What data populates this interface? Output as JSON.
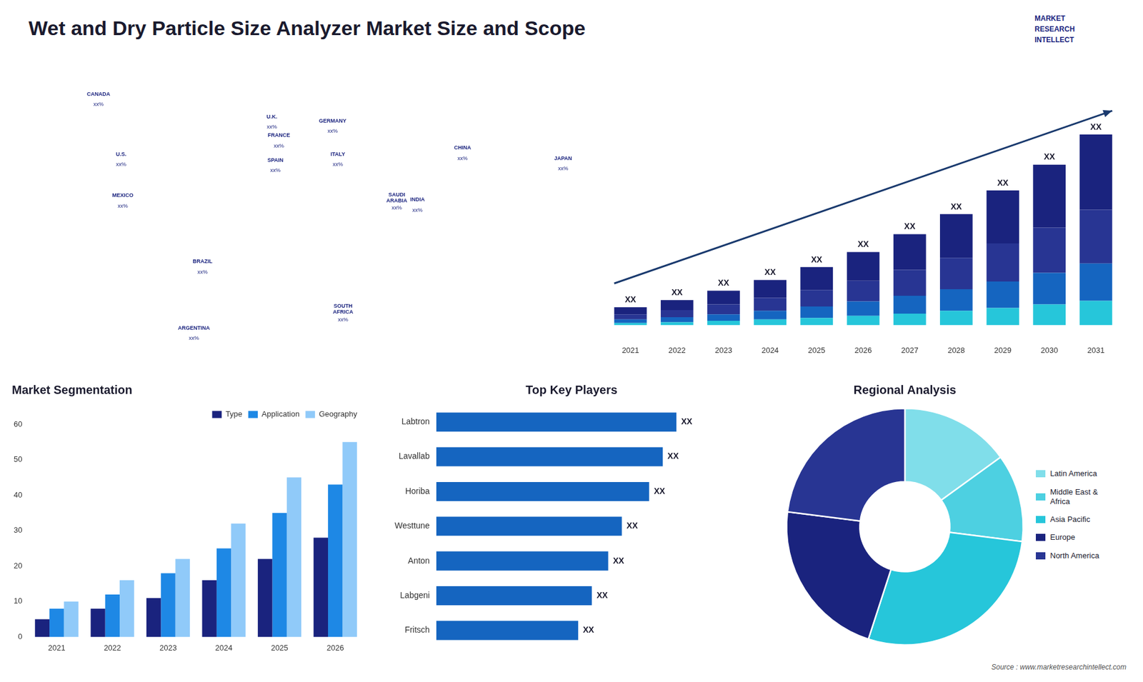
{
  "title": "Wet and Dry Particle Size Analyzer Market Size and Scope",
  "annotations": [
    "MARKET\nRESEARCH\nINTELLECT",
    "Source : www.marketresearchintellect.com"
  ],
  "chart_data": [
    {
      "type": "scatter",
      "xlim": [
        -170,
        170
      ],
      "ylim": [
        -58,
        80
      ],
      "tick_labels": false,
      "grid": false,
      "annotations": [
        {
          "text": "CANADA",
          "x": -120,
          "y": 69
        },
        {
          "text": "xx%",
          "x": -120,
          "y": 64
        },
        {
          "text": "U.S.",
          "x": -107,
          "y": 40
        },
        {
          "text": "xx%",
          "x": -107,
          "y": 35
        },
        {
          "text": "MEXICO",
          "x": -106,
          "y": 20
        },
        {
          "text": "xx%",
          "x": -106,
          "y": 15
        },
        {
          "text": "BRAZIL",
          "x": -60,
          "y": -12
        },
        {
          "text": "xx%",
          "x": -60,
          "y": -17
        },
        {
          "text": "ARGENTINA",
          "x": -65,
          "y": -44
        },
        {
          "text": "xx%",
          "x": -65,
          "y": -49
        },
        {
          "text": "U.K.",
          "x": -20,
          "y": 58
        },
        {
          "text": "xx%",
          "x": -20,
          "y": 53
        },
        {
          "text": "FRANCE",
          "x": -16,
          "y": 49
        },
        {
          "text": "xx%",
          "x": -16,
          "y": 44
        },
        {
          "text": "GERMANY",
          "x": 15,
          "y": 56
        },
        {
          "text": "xx%",
          "x": 15,
          "y": 51
        },
        {
          "text": "SPAIN",
          "x": -18,
          "y": 37
        },
        {
          "text": "xx%",
          "x": -18,
          "y": 32
        },
        {
          "text": "ITALY",
          "x": 18,
          "y": 40
        },
        {
          "text": "xx%",
          "x": 18,
          "y": 35
        },
        {
          "text": "SAUDI\nARABIA",
          "x": 52,
          "y": 19
        },
        {
          "text": "xx%",
          "x": 52,
          "y": 14
        },
        {
          "text": "SOUTH\nAFRICA",
          "x": 21,
          "y": -35
        },
        {
          "text": "xx%",
          "x": 21,
          "y": -40
        },
        {
          "text": "CHINA",
          "x": 90,
          "y": 43
        },
        {
          "text": "xx%",
          "x": 90,
          "y": 38
        },
        {
          "text": "INDIA",
          "x": 64,
          "y": 18
        },
        {
          "text": "xx%",
          "x": 64,
          "y": 13
        },
        {
          "text": "JAPAN",
          "x": 148,
          "y": 38
        },
        {
          "text": "xx%",
          "x": 148,
          "y": 33
        }
      ]
    },
    {
      "type": "bar",
      "stacked": true,
      "tick_labels": "x",
      "grid": false,
      "categories": [
        "2021",
        "2022",
        "2023",
        "2024",
        "2025",
        "2026",
        "2027",
        "2028",
        "2029",
        "2030",
        "2031"
      ],
      "series": [
        {
          "color": "#26c6da",
          "values": [
            0.3,
            0.4,
            0.6,
            0.8,
            1.0,
            1.3,
            1.6,
            2.0,
            2.4,
            2.9,
            3.4
          ]
        },
        {
          "color": "#1565c0",
          "values": [
            0.5,
            0.7,
            0.9,
            1.2,
            1.6,
            2.0,
            2.5,
            3.0,
            3.7,
            4.4,
            5.2
          ]
        },
        {
          "color": "#283593",
          "values": [
            0.7,
            1.0,
            1.4,
            1.8,
            2.3,
            2.9,
            3.6,
            4.4,
            5.3,
            6.3,
            7.5
          ]
        },
        {
          "color": "#1a237e",
          "values": [
            1.0,
            1.4,
            1.9,
            2.5,
            3.2,
            4.0,
            5.0,
            6.1,
            7.4,
            8.8,
            10.5
          ]
        }
      ],
      "ylim": [
        -2,
        34.58
      ],
      "annotations": [
        {
          "text": "XX",
          "category": "2021"
        },
        {
          "text": "XX",
          "category": "2022"
        },
        {
          "text": "XX",
          "category": "2023"
        },
        {
          "text": "XX",
          "category": "2024"
        },
        {
          "text": "XX",
          "category": "2025"
        },
        {
          "text": "XX",
          "category": "2026"
        },
        {
          "text": "XX",
          "category": "2027"
        },
        {
          "text": "XX",
          "category": "2028"
        },
        {
          "text": "XX",
          "category": "2029"
        },
        {
          "text": "XX",
          "category": "2030"
        },
        {
          "text": "XX",
          "category": "2031"
        }
      ]
    },
    {
      "type": "bar",
      "title": "Market Segmentation",
      "grid": false,
      "legend": "top",
      "categories": [
        "2021",
        "2022",
        "2023",
        "2024",
        "2025",
        "2026"
      ],
      "series": [
        {
          "name": "Type",
          "color": "#1a237e",
          "values": [
            5,
            8,
            11,
            16,
            22,
            28
          ]
        },
        {
          "name": "Application",
          "color": "#1e88e5",
          "values": [
            8,
            12,
            18,
            25,
            35,
            43
          ]
        },
        {
          "name": "Geography",
          "color": "#90caf9",
          "values": [
            10,
            16,
            22,
            32,
            45,
            55
          ]
        }
      ],
      "ylim": [
        0,
        60
      ],
      "yticks": [
        0,
        10,
        20,
        30,
        40,
        50,
        60
      ]
    },
    {
      "type": "bar",
      "orientation": "horizontal",
      "title": "Top Key Players",
      "grid": false,
      "tick_labels": "y",
      "categories": [
        "Labtron",
        "Lavallab",
        "Horiba",
        "Westtune",
        "Anton",
        "Labgeni",
        "Fritsch"
      ],
      "values": [
        88,
        83,
        78,
        68,
        63,
        57,
        52
      ],
      "color": "#1565c0",
      "xlim": [
        0,
        115
      ],
      "annotations": [
        {
          "text": "XX",
          "category": "Labtron"
        },
        {
          "text": "XX",
          "category": "Lavallab"
        },
        {
          "text": "XX",
          "category": "Horiba"
        },
        {
          "text": "XX",
          "category": "Westtune"
        },
        {
          "text": "XX",
          "category": "Anton"
        },
        {
          "text": "XX",
          "category": "Labgeni"
        },
        {
          "text": "XX",
          "category": "Fritsch"
        }
      ]
    },
    {
      "type": "doughnut",
      "title": "Regional Analysis",
      "legend": "right",
      "categories": [
        "Latin America",
        "Middle East &\nAfrica",
        "Asia Pacific",
        "Europe",
        "North America"
      ],
      "values": [
        15,
        12,
        28,
        22,
        23
      ],
      "colors": [
        "#80deea",
        "#4dd0e1",
        "#26c6da",
        "#1a237e",
        "#283593"
      ]
    }
  ]
}
